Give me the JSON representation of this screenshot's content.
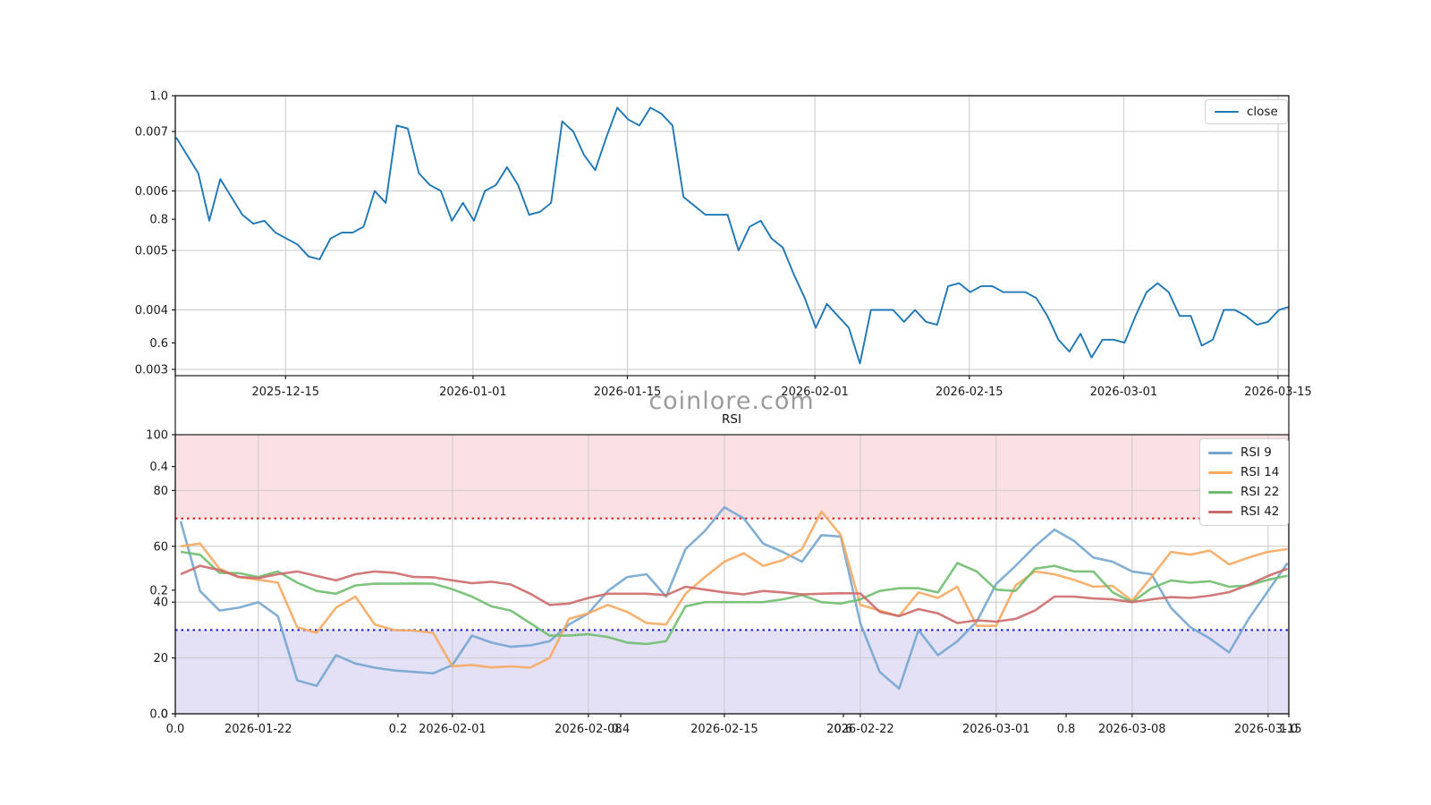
{
  "watermark": "coinlore.com",
  "figure_axis": {
    "x_ticks": [
      "0.0",
      "0.2",
      "0.4",
      "0.6",
      "0.8",
      "1.0"
    ],
    "y_ticks": [
      "1.0",
      "0.8",
      "0.6",
      "0.4",
      "0.2",
      "0.0"
    ]
  },
  "colors": {
    "close_line": "#1f77b4",
    "rsi9_line": "#74a6ce",
    "rsi14_line": "#f6a961",
    "rsi22_line": "#70bd70",
    "rsi42_line": "#cd6a6a",
    "overbought_band": "#fce1e4",
    "oversold_band": "#e4e1f7",
    "overbought_dotted": "#e01616",
    "oversold_dotted": "#1616d9",
    "grid": "#c9c9c9",
    "spine": "#1a1a1a",
    "tick_text": "#1a1a1a",
    "watermark_text": "#9b9b9b"
  },
  "chart_data": [
    {
      "type": "line",
      "title": "close",
      "x_start_date": "2025-12-05",
      "x_interval": "daily",
      "x_tick_labels": [
        "2025-12-15",
        "2026-01-01",
        "2026-01-15",
        "2026-02-01",
        "2026-02-15",
        "2026-03-01",
        "2026-03-15"
      ],
      "y_tick_labels": [
        "0.003",
        "0.004",
        "0.005",
        "0.006",
        "0.007"
      ],
      "ylim": [
        0.0029,
        0.0076
      ],
      "grid": true,
      "legend_position": "upper right",
      "series": [
        {
          "name": "close",
          "color": "#1f77b4",
          "values": [
            0.0069,
            0.0066,
            0.0063,
            0.0055,
            0.0062,
            0.0059,
            0.0056,
            0.00545,
            0.0055,
            0.0053,
            0.0052,
            0.0051,
            0.0049,
            0.00485,
            0.0052,
            0.0053,
            0.0053,
            0.0054,
            0.006,
            0.0058,
            0.0071,
            0.00705,
            0.0063,
            0.0061,
            0.006,
            0.0055,
            0.0058,
            0.0055,
            0.006,
            0.0061,
            0.0064,
            0.0061,
            0.0056,
            0.00565,
            0.0058,
            0.00717,
            0.007,
            0.0066,
            0.00635,
            0.0069,
            0.0074,
            0.0072,
            0.0071,
            0.0074,
            0.0073,
            0.0071,
            0.0059,
            0.00575,
            0.0056,
            0.0056,
            0.0056,
            0.005,
            0.0054,
            0.0055,
            0.0052,
            0.00505,
            0.0046,
            0.0042,
            0.0037,
            0.0041,
            0.0039,
            0.0037,
            0.0031,
            0.004,
            0.004,
            0.004,
            0.0038,
            0.004,
            0.0038,
            0.00375,
            0.0044,
            0.00445,
            0.0043,
            0.0044,
            0.0044,
            0.0043,
            0.0043,
            0.0043,
            0.0042,
            0.0039,
            0.0035,
            0.0033,
            0.0036,
            0.0032,
            0.0035,
            0.0035,
            0.00345,
            0.0039,
            0.0043,
            0.00445,
            0.0043,
            0.0039,
            0.0039,
            0.0034,
            0.0035,
            0.004,
            0.004,
            0.0039,
            0.00375,
            0.0038,
            0.004,
            0.00405
          ]
        }
      ]
    },
    {
      "type": "line",
      "title": "RSI",
      "x_start_date": "2026-01-18",
      "x_interval": "daily",
      "x_tick_labels": [
        "2026-01-22",
        "2026-02-01",
        "2026-02-08",
        "2026-02-15",
        "2026-02-22",
        "2026-03-01",
        "2026-03-08",
        "2026-03-15"
      ],
      "y_tick_labels": [
        "0",
        "20",
        "40",
        "60",
        "80",
        "100"
      ],
      "ylim": [
        0,
        100
      ],
      "overbought_level": 70,
      "oversold_level": 30,
      "overbought_band": [
        70,
        100
      ],
      "oversold_band": [
        0,
        30
      ],
      "grid": true,
      "legend_position": "upper right",
      "series": [
        {
          "name": "RSI 9",
          "color": "#74a6ce",
          "values": [
            69,
            44,
            37,
            38,
            40,
            35,
            12,
            10,
            21,
            18,
            16.5,
            15.5,
            15,
            14.5,
            17.5,
            28,
            25.5,
            24,
            24.5,
            26,
            32,
            36,
            44,
            49,
            50,
            42,
            59,
            65.5,
            74,
            70,
            61,
            58,
            54.5,
            64,
            63.5,
            32.5,
            15,
            9,
            30,
            21,
            26,
            33,
            46.5,
            53,
            60,
            66,
            62,
            56,
            54.5,
            51,
            50,
            38,
            31,
            27,
            22,
            34,
            44,
            54
          ]
        },
        {
          "name": "RSI 14",
          "color": "#f6a961",
          "values": [
            60,
            61,
            52,
            49,
            48,
            47,
            31,
            29,
            38,
            42,
            32,
            30,
            29.8,
            29,
            17,
            17.5,
            16.6,
            17,
            16.5,
            20,
            34,
            36,
            39,
            36.5,
            32.5,
            32,
            43,
            49,
            54.5,
            57.5,
            53,
            55,
            59,
            72.5,
            64,
            39,
            37,
            35,
            43.5,
            41.5,
            45.5,
            31.5,
            31.5,
            46,
            51,
            50,
            48,
            45.5,
            45.8,
            40.5,
            49,
            58,
            57,
            58.5,
            53.5,
            56,
            58,
            59
          ]
        },
        {
          "name": "RSI 22",
          "color": "#70bd70",
          "values": [
            58,
            57,
            50.5,
            50.4,
            49,
            51,
            47,
            44,
            43,
            46,
            46.6,
            46.6,
            46.7,
            46.6,
            44.6,
            42,
            38.5,
            37,
            32.5,
            28,
            28,
            28.5,
            27.5,
            25.5,
            25,
            26,
            38.5,
            40,
            40,
            40,
            40,
            41,
            42.5,
            40,
            39.5,
            41,
            44,
            45,
            45,
            43.5,
            54,
            51,
            44.5,
            44,
            52,
            53,
            51,
            51,
            43.5,
            40,
            45,
            47.8,
            47,
            47.5,
            45.5,
            46,
            48,
            49.5
          ]
        },
        {
          "name": "RSI 42",
          "color": "#cd6a6a",
          "values": [
            50,
            53,
            51.5,
            49,
            48.6,
            50,
            51,
            49.4,
            47.8,
            50,
            51,
            50.5,
            49,
            48.9,
            47.8,
            46.8,
            47.3,
            46.3,
            43,
            39,
            39.5,
            41.5,
            43,
            43,
            43,
            42.5,
            45.5,
            44.5,
            43.5,
            42.8,
            44,
            43.5,
            42.8,
            43,
            43.2,
            43.1,
            36.5,
            35,
            37.5,
            36,
            32.5,
            33.5,
            33,
            34,
            37,
            42,
            42,
            41.3,
            41,
            40,
            41,
            41.8,
            41.5,
            42.3,
            43.6,
            46.2,
            49.4,
            52
          ]
        }
      ]
    }
  ]
}
